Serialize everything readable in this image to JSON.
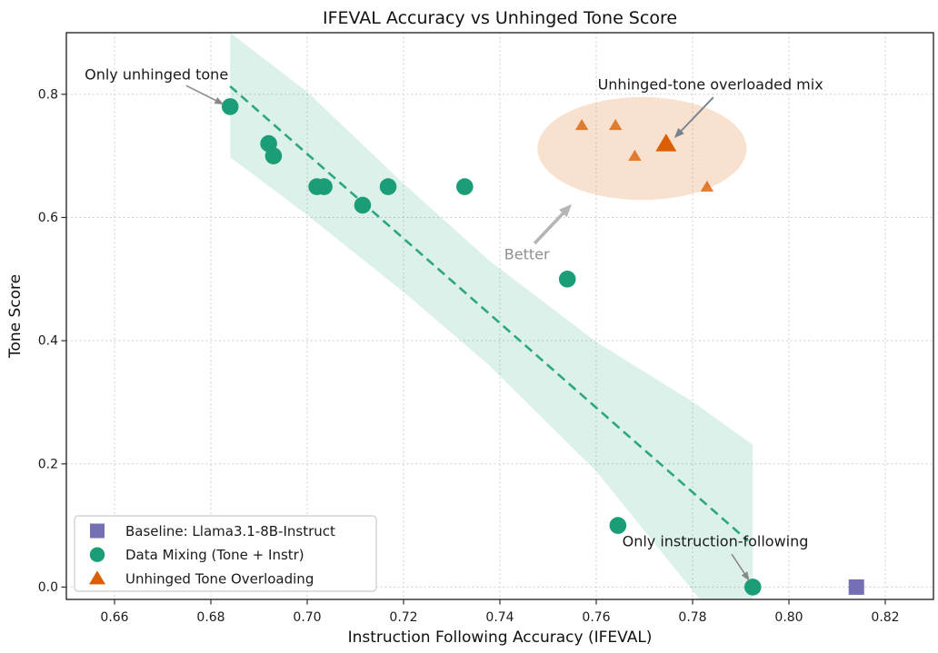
{
  "figure": {
    "background": "#ffffff"
  },
  "chart_data": {
    "type": "scatter",
    "title": "IFEVAL Accuracy vs Unhinged Tone Score",
    "xlabel": "Instruction Following Accuracy (IFEVAL)",
    "ylabel": "Tone Score",
    "xlim": [
      0.65,
      0.83
    ],
    "ylim": [
      -0.02,
      0.9
    ],
    "grid": true,
    "xticks": {
      "values": [
        0.66,
        0.68,
        0.7,
        0.72,
        0.74,
        0.76,
        0.78,
        0.8,
        0.82
      ],
      "labels": [
        "0.66",
        "0.68",
        "0.70",
        "0.72",
        "0.74",
        "0.76",
        "0.78",
        "0.80",
        "0.82"
      ]
    },
    "yticks": {
      "values": [
        0.0,
        0.2,
        0.4,
        0.6,
        0.8
      ],
      "labels": [
        "0.0",
        "0.2",
        "0.4",
        "0.6",
        "0.8"
      ]
    },
    "series": [
      {
        "name": "Baseline: Llama3.1-8B-Instruct",
        "marker": "square",
        "color": "#7570b3",
        "points": [
          [
            0.814,
            0.0
          ]
        ]
      },
      {
        "name": "Data Mixing (Tone + Instr)",
        "marker": "circle",
        "color": "#1b9e77",
        "points": [
          [
            0.684,
            0.78
          ],
          [
            0.692,
            0.72
          ],
          [
            0.693,
            0.7
          ],
          [
            0.702,
            0.65
          ],
          [
            0.7035,
            0.65
          ],
          [
            0.7115,
            0.62
          ],
          [
            0.7168,
            0.65
          ],
          [
            0.7327,
            0.65
          ],
          [
            0.754,
            0.5
          ],
          [
            0.7645,
            0.1
          ],
          [
            0.7925,
            0.0
          ]
        ]
      },
      {
        "name": "Unhinged Tone Overloading",
        "marker": "triangle",
        "color": "#d95f02",
        "points": [
          [
            0.757,
            0.75
          ],
          [
            0.764,
            0.75
          ],
          [
            0.768,
            0.7
          ],
          [
            0.7745,
            0.72
          ],
          [
            0.783,
            0.65
          ]
        ],
        "emphasized_index": 3,
        "small_marker_opacity": 0.78
      }
    ],
    "trend_line": {
      "x1": 0.684,
      "y1": 0.813,
      "x2": 0.7915,
      "y2": 0.075,
      "color": "#1b9e77",
      "style": "dashed",
      "opacity": 0.9
    },
    "confidence_band": {
      "color": "rgba(27,158,119,0.15)",
      "polygon": [
        [
          0.684,
          0.9
        ],
        [
          0.7,
          0.804
        ],
        [
          0.72,
          0.655
        ],
        [
          0.7375,
          0.532
        ],
        [
          0.76,
          0.398
        ],
        [
          0.78,
          0.301
        ],
        [
          0.7925,
          0.231
        ],
        [
          0.7925,
          -0.02
        ],
        [
          0.7815,
          -0.02
        ],
        [
          0.76,
          0.188
        ],
        [
          0.7375,
          0.362
        ],
        [
          0.72,
          0.479
        ],
        [
          0.7,
          0.604
        ],
        [
          0.684,
          0.698
        ]
      ]
    },
    "highlight_ellipse": {
      "cx": 0.7695,
      "cy": 0.712,
      "rx": 0.0217,
      "ry": 0.0835,
      "color": "rgba(222,112,28,0.21)"
    },
    "annotations": [
      {
        "label": "Only unhinged tone",
        "text_x": 0.6538,
        "text_y": 0.8325,
        "anchor": "start",
        "color": "#1a1a1a",
        "arrow": {
          "x1": 0.6749,
          "y1": 0.814,
          "x2": 0.6827,
          "y2": 0.7835,
          "color": "#8a8a8a",
          "width": 1.6,
          "head_l": 10,
          "head_w": 8
        }
      },
      {
        "label": "Unhinged-tone overloaded mix",
        "text_x": 0.7603,
        "text_y": 0.8163,
        "anchor": "start",
        "color": "#1a1a1a",
        "arrow": {
          "x1": 0.7843,
          "y1": 0.795,
          "x2": 0.7762,
          "y2": 0.729,
          "color": "#78828c",
          "width": 1.9,
          "head_l": 11,
          "head_w": 9
        }
      },
      {
        "label": "Better",
        "text_x": 0.7456,
        "text_y": 0.5404,
        "anchor": "middle",
        "color": "#8f8f8f",
        "arrow": {
          "x1": 0.7472,
          "y1": 0.558,
          "x2": 0.7549,
          "y2": 0.6215,
          "color": "#b5b5b5",
          "width": 3.6,
          "head_l": 14,
          "head_w": 12
        }
      },
      {
        "label": "Only instruction-following",
        "text_x": 0.7654,
        "text_y": 0.0743,
        "anchor": "start",
        "color": "#1a1a1a",
        "arrow": {
          "x1": 0.7881,
          "y1": 0.0537,
          "x2": 0.7918,
          "y2": 0.01,
          "color": "#8a8a8a",
          "width": 1.6,
          "head_l": 10,
          "head_w": 8
        }
      }
    ],
    "legend": {
      "position": "lower-left",
      "border_color": "#cccccc",
      "background": "#ffffff"
    }
  }
}
